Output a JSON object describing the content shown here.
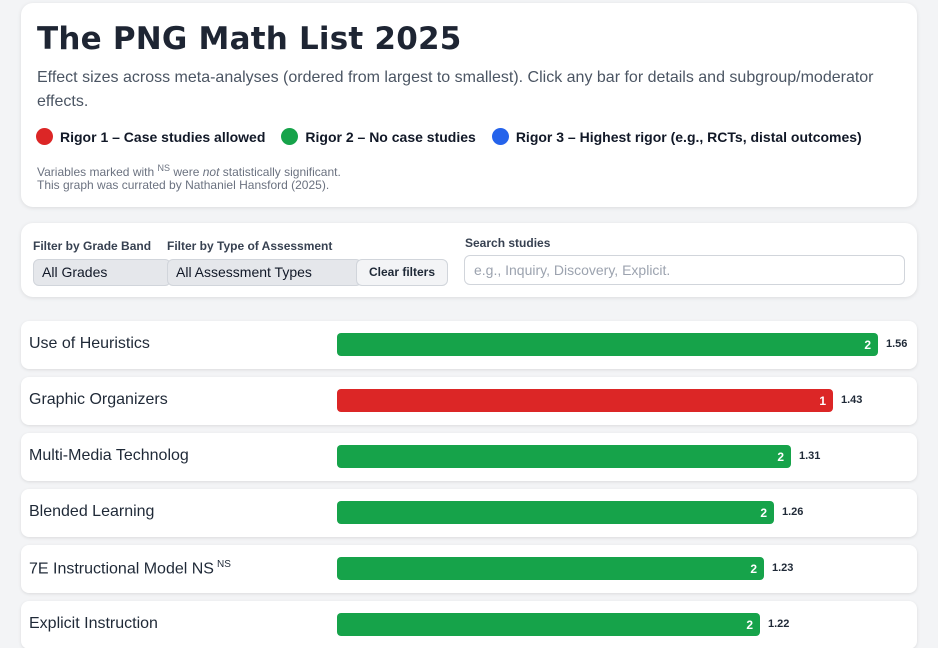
{
  "header": {
    "title": "The PNG Math List 2025",
    "subtitle": "Effect sizes across meta-analyses (ordered from largest to smallest). Click any bar for details and subgroup/moderator effects.",
    "legend": [
      {
        "label": "Rigor 1 – Case studies allowed",
        "color": "#dc2626"
      },
      {
        "label": "Rigor 2 – No case studies",
        "color": "#16a34a"
      },
      {
        "label": "Rigor 3 – Highest rigor (e.g., RCTs, distal outcomes)",
        "color": "#2563eb"
      }
    ],
    "ns_note_prefix": "Variables marked with",
    "ns_marker": "NS",
    "ns_note_were": "were",
    "ns_note_not": "not",
    "ns_note_suffix": "statistically significant.",
    "curator_note": "This graph was currated by Nathaniel Hansford (2025)."
  },
  "filters": {
    "grade_label": "Filter by Grade Band",
    "grade_value": "All Grades",
    "assessment_label": "Filter by Type of Assessment",
    "assessment_value": "All Assessment Types",
    "clear_label": "Clear filters",
    "search_label": "Search studies",
    "search_placeholder": "e.g., Inquiry, Discovery, Explicit."
  },
  "chart_data": {
    "type": "bar",
    "orientation": "horizontal",
    "rigor_colors": {
      "1": "#dc2626",
      "2": "#16a34a",
      "3": "#2563eb"
    },
    "items": [
      {
        "label": "Use of Heuristics",
        "value": 1.56,
        "rigor": 2,
        "value_label": "1.56",
        "rigor_label": "2",
        "ns": false
      },
      {
        "label": "Graphic Organizers",
        "value": 1.43,
        "rigor": 1,
        "value_label": "1.43",
        "rigor_label": "1",
        "ns": false
      },
      {
        "label": "Multi-Media Technolog",
        "value": 1.31,
        "rigor": 2,
        "value_label": "1.31",
        "rigor_label": "2",
        "ns": false
      },
      {
        "label": "Blended Learning",
        "value": 1.26,
        "rigor": 2,
        "value_label": "1.26",
        "rigor_label": "2",
        "ns": false
      },
      {
        "label": "7E Instructional Model NS",
        "value": 1.23,
        "rigor": 2,
        "value_label": "1.23",
        "rigor_label": "2",
        "ns": true,
        "ns_marker": "NS"
      },
      {
        "label": "Explicit Instruction",
        "value": 1.22,
        "rigor": 2,
        "value_label": "1.22",
        "rigor_label": "2",
        "ns": false
      }
    ]
  }
}
